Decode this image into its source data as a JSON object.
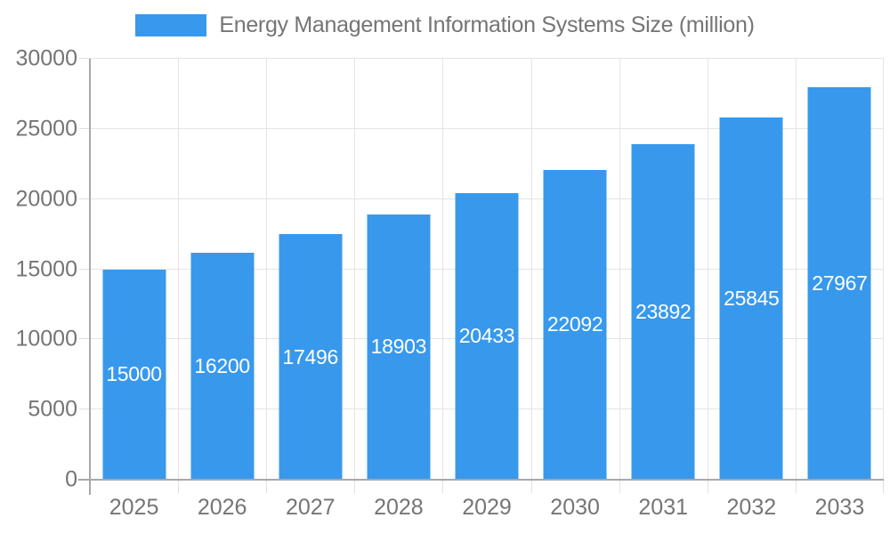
{
  "legend": {
    "series_label": "Energy Management Information Systems Size (million)"
  },
  "chart_data": {
    "type": "bar",
    "title": "Energy Management Information Systems Size (million)",
    "categories": [
      "2025",
      "2026",
      "2027",
      "2028",
      "2029",
      "2030",
      "2031",
      "2032",
      "2033"
    ],
    "values": [
      15000,
      16200,
      17496,
      18903,
      20433,
      22092,
      23892,
      25845,
      27967
    ],
    "value_labels": [
      "15000",
      "16200",
      "17496",
      "18903",
      "20433",
      "22092",
      "23892",
      "25845",
      "27967"
    ],
    "value_label_position": "inside-center",
    "xlabel": "",
    "ylabel": "",
    "ylim": [
      0,
      30000
    ],
    "ytick_interval": 5000,
    "ytick_labels": [
      "0",
      "5000",
      "10000",
      "15000",
      "20000",
      "25000",
      "30000"
    ],
    "grid": true,
    "legend_position": "top-center",
    "colors": {
      "bar": "#3899EC",
      "value_label": "#FFFFFF",
      "axis_text": "#757575",
      "gridline": "#E4E4E4",
      "axis_line": "#A8A8A8",
      "tick": "#E0E0E0",
      "background": "#FFFFFF"
    }
  }
}
